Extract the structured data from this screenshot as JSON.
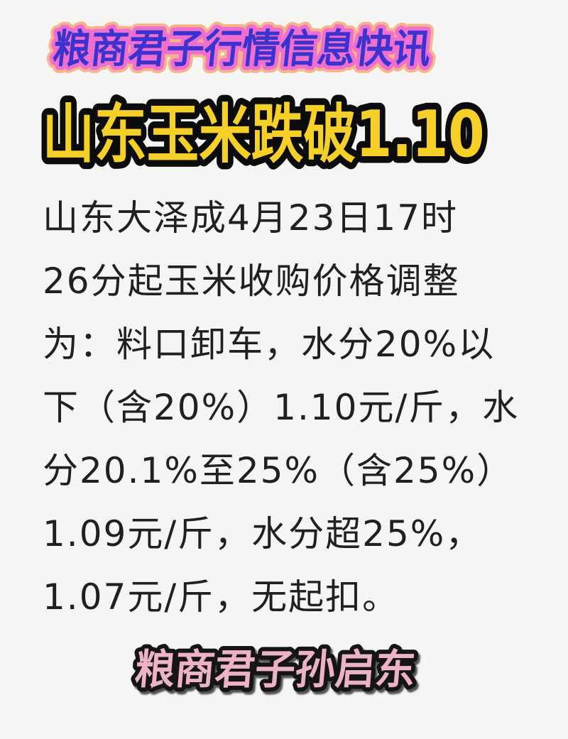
{
  "page": {
    "background_color": "#f5f5f3"
  },
  "header": {
    "text": "粮商君子行情信息快讯",
    "fill_color": "#3c33cf",
    "outline_color": "#ef6fd0",
    "halo_color": "#f6b48c"
  },
  "title": {
    "text": "山东玉米跌破1.10",
    "fill_color": "#f4d029",
    "outline_color": "#0c0c0c"
  },
  "body": {
    "text_color": "#202020",
    "lines": [
      "山东大泽成4月23日17时",
      "26分起玉米收购价格调整",
      "为：料口卸车，水分20%以",
      "下（含20%）1.10元/斤，水",
      "分20.1%至25%（含25%）",
      "1.09元/斤，水分超25%，",
      "1.07元/斤，无起扣。"
    ],
    "full_text": "山东大泽成4月23日17时26分起玉米收购价格调整为：料口卸车，水分20%以下（含20%）1.10元/斤，水分20.1%至25%（含25%）1.09元/斤，水分超25%，1.07元/斤，无起扣。"
  },
  "footer": {
    "text": "粮商君子孙启东",
    "fill_color": "#ecb2c8",
    "outline_color": "#151515"
  }
}
